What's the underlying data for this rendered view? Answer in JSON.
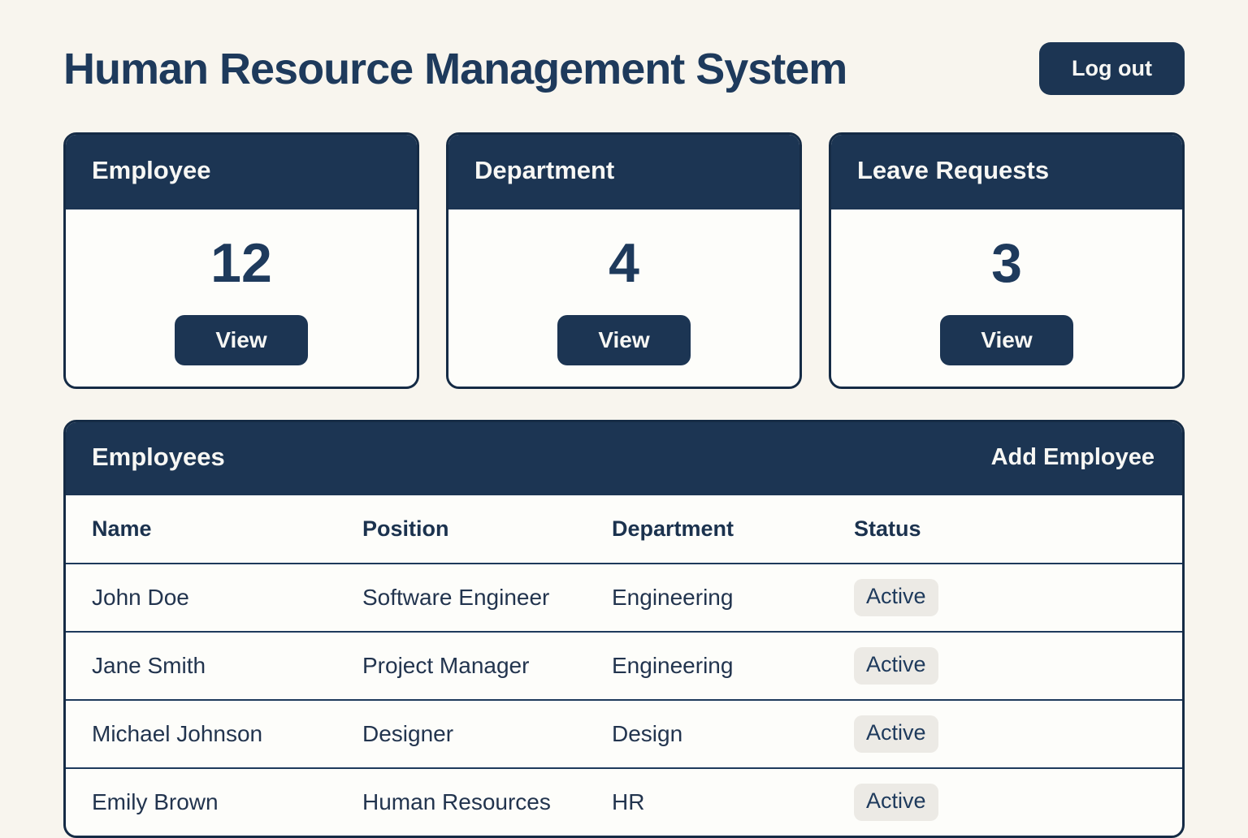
{
  "app": {
    "title": "Human Resource Management System",
    "logout_label": "Log out"
  },
  "summary_cards": [
    {
      "title": "Employee",
      "count": "12",
      "action_label": "View"
    },
    {
      "title": "Department",
      "count": "4",
      "action_label": "View"
    },
    {
      "title": "Leave Requests",
      "count": "3",
      "action_label": "View"
    }
  ],
  "employees_panel": {
    "title": "Employees",
    "add_button_label": "Add Employee",
    "columns": [
      "Name",
      "Position",
      "Department",
      "Status"
    ],
    "rows": [
      {
        "name": "John Doe",
        "position": "Software Engineer",
        "department": "Engineering",
        "status": "Active"
      },
      {
        "name": "Jane Smith",
        "position": "Project Manager",
        "department": "Engineering",
        "status": "Active"
      },
      {
        "name": "Michael Johnson",
        "position": "Designer",
        "department": "Design",
        "status": "Active"
      },
      {
        "name": "Emily Brown",
        "position": "Human Resources",
        "department": "HR",
        "status": "Active"
      }
    ]
  },
  "colors": {
    "navy": "#1c3553",
    "background": "#f8f5ee",
    "badge_background": "#eceae5",
    "panel_background": "#fdfdfa"
  }
}
